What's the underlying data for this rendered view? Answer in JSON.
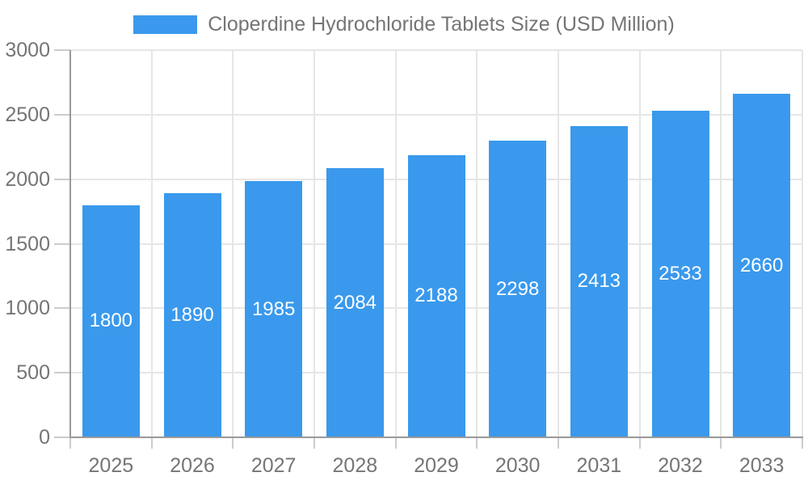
{
  "chart_data": {
    "type": "bar",
    "series_name": "Cloperdine Hydrochloride Tablets Size (USD Million)",
    "categories": [
      "2025",
      "2026",
      "2027",
      "2028",
      "2029",
      "2030",
      "2031",
      "2032",
      "2033"
    ],
    "values": [
      1800,
      1890,
      1985,
      2084,
      2188,
      2298,
      2413,
      2533,
      2660
    ],
    "title": "",
    "xlabel": "",
    "ylabel": "",
    "ylim": [
      0,
      3000
    ],
    "yticks": [
      0,
      500,
      1000,
      1500,
      2000,
      2500,
      3000
    ],
    "grid": true,
    "legend_position": "top",
    "bar_labels_inside": true,
    "colors": {
      "bar": "#3A99EC",
      "bar_label": "#FFFFFF",
      "axis_line": "#999999",
      "tick_mark": "#CCCCCC",
      "gridline": "#E6E6E6",
      "axis_text": "#757575",
      "legend_text": "#757575",
      "background": "#FFFFFF"
    }
  }
}
